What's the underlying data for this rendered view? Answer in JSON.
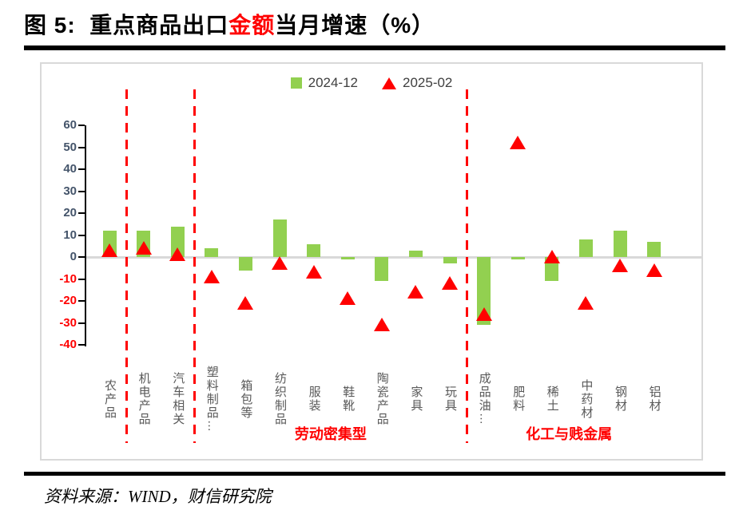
{
  "title": {
    "prefix": "图 5:  重点商品出口",
    "highlight": "金额",
    "suffix": "当月增速（%）",
    "highlight_color": "#FF0000"
  },
  "footer": {
    "source_text": "资料来源：WIND，财信研究院"
  },
  "chart_data": {
    "type": "bar",
    "title": "重点商品出口金额当月增速（%）",
    "xlabel": "",
    "ylabel": "",
    "ylim": [
      -40,
      60
    ],
    "ytick_step": 10,
    "grid": "zero-line-only",
    "legend_position": "top-center",
    "categories": [
      "农产品",
      "机电产品",
      "汽车相关",
      "塑料制品…",
      "箱包等",
      "纺织制品",
      "服装",
      "鞋靴",
      "陶瓷产品",
      "家具",
      "玩具",
      "成品油…",
      "肥料",
      "稀土",
      "中药材",
      "钢材",
      "铝材"
    ],
    "series": [
      {
        "name": "2024-12",
        "type": "bar",
        "color": "#92D050",
        "values": [
          12,
          12,
          14,
          4,
          -6,
          17,
          6,
          -1,
          -11,
          3,
          -3,
          -31,
          -1,
          -11,
          8,
          12,
          7
        ]
      },
      {
        "name": "2025-02",
        "type": "triangle-marker",
        "color": "#FF0000",
        "values": [
          3,
          4,
          1,
          -9,
          -21,
          -3,
          -7,
          -19,
          -31,
          -16,
          -12,
          -26,
          52,
          0,
          -21,
          -4,
          -6
        ]
      }
    ],
    "dividers_before_category_index": [
      1,
      3,
      11
    ],
    "group_labels": [
      {
        "text": "劳动密集型",
        "from_index": 3,
        "to_index": 10,
        "color": "#FF0000"
      },
      {
        "text": "化工与贱金属",
        "from_index": 11,
        "to_index": 16,
        "color": "#FF0000"
      }
    ],
    "axis_colors": {
      "positive_tick_label": "#44546A",
      "negative_tick_label": "#FF0000",
      "axis_line": "#000000",
      "zero_line": "#D9D9D9"
    }
  }
}
